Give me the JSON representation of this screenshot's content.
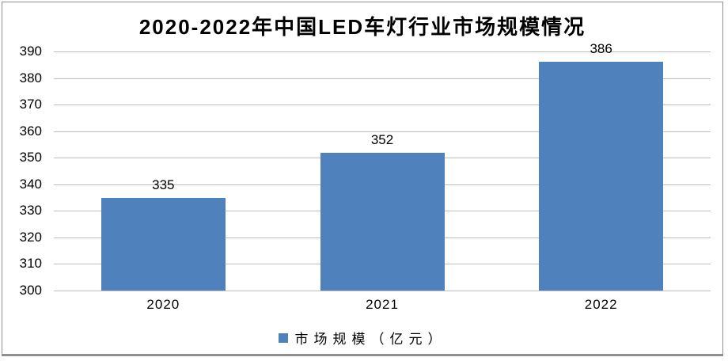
{
  "chart_data": {
    "type": "bar",
    "title": "2020-2022年中国LED车灯行业市场规模情况",
    "categories": [
      "2020",
      "2021",
      "2022"
    ],
    "values": [
      335,
      352,
      386
    ],
    "data_labels": [
      "335",
      "352",
      "386"
    ],
    "series_name": "市场规模（亿元）",
    "xlabel": "",
    "ylabel": "",
    "ylim": [
      300,
      390
    ],
    "ytick_interval": 10,
    "yticks": [
      390,
      380,
      370,
      360,
      350,
      340,
      330,
      320,
      310,
      300
    ],
    "grid": true,
    "legend_position": "bottom",
    "colors": {
      "bar": "#4f81bd",
      "gridline": "#bdbdbd",
      "text": "#000000",
      "frame_border": "#8f8f8f"
    }
  },
  "legend": {
    "label": "市场规模（亿元）"
  }
}
